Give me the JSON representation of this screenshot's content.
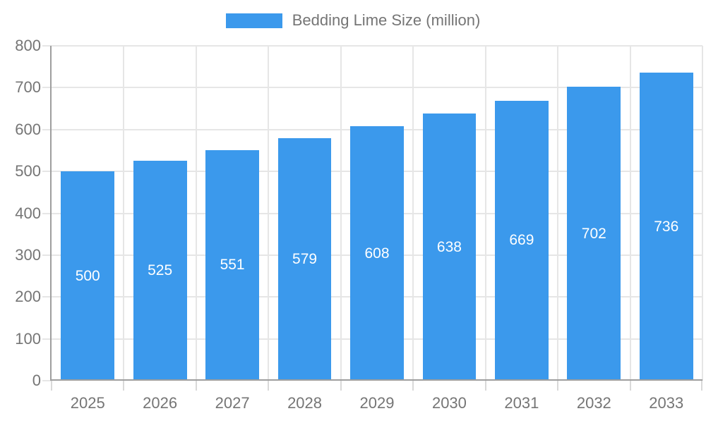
{
  "colors": {
    "bar": "#3b99ec",
    "text": "#757575",
    "grid": "#e6e6e6",
    "axis": "#9e9e9e",
    "tick": "#d9d9d9",
    "value_label": "#ffffff",
    "background": "#ffffff"
  },
  "chart_data": {
    "type": "bar",
    "title": "Bedding Lime Size (million)",
    "legend": {
      "label": "Bedding Lime Size (million)",
      "position": "top"
    },
    "categories": [
      "2025",
      "2026",
      "2027",
      "2028",
      "2029",
      "2030",
      "2031",
      "2032",
      "2033"
    ],
    "series": [
      {
        "name": "Bedding Lime Size (million)",
        "values": [
          500,
          525,
          551,
          579,
          608,
          638,
          669,
          702,
          736
        ]
      }
    ],
    "xlabel": "",
    "ylabel": "",
    "ylim": [
      0,
      800
    ],
    "ytick_step": 100,
    "grid": true,
    "value_labels": "inside-middle-white"
  }
}
